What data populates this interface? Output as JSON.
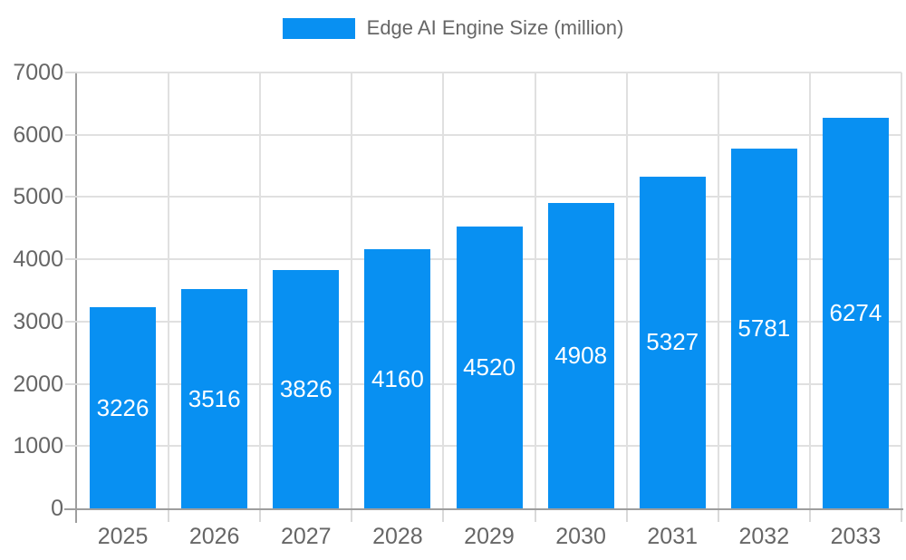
{
  "legend": {
    "label": "Edge AI Engine Size (million)",
    "swatch_color": "#0890f2"
  },
  "chart_data": {
    "type": "bar",
    "title": "Edge AI Engine Size (million)",
    "categories": [
      "2025",
      "2026",
      "2027",
      "2028",
      "2029",
      "2030",
      "2031",
      "2032",
      "2033"
    ],
    "values": [
      3226,
      3516,
      3826,
      4160,
      4520,
      4908,
      5327,
      5781,
      6274
    ],
    "xlabel": "",
    "ylabel": "",
    "ylim": [
      0,
      7000
    ],
    "yticks": [
      0,
      1000,
      2000,
      3000,
      4000,
      5000,
      6000,
      7000
    ],
    "grid": true,
    "legend_position": "top-center",
    "bar_color": "#0890f2",
    "value_label_color": "#ffffff",
    "axis_color": "#9e9e9e",
    "grid_color": "#e0e0e0",
    "tick_color": "#d9d9d9",
    "text_color": "#666666",
    "background": "#ffffff"
  }
}
